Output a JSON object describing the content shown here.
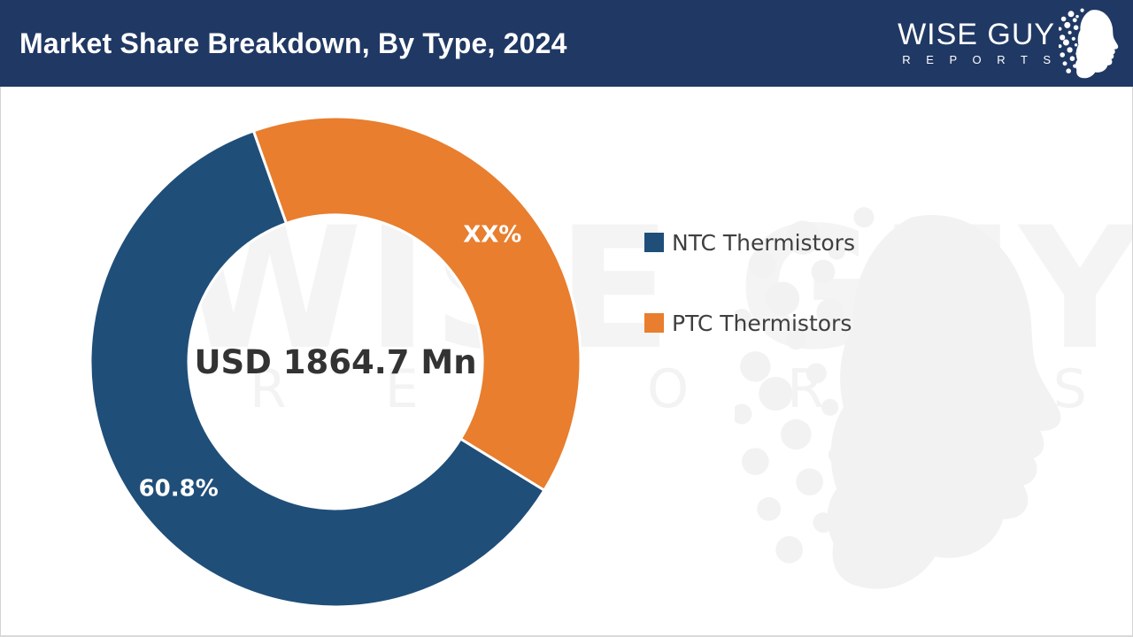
{
  "header": {
    "title": "Market Share Breakdown, By Type, 2024",
    "logo": {
      "line1": "WISE GUY",
      "line2": "R E P O R T S"
    }
  },
  "watermark": {
    "wordmark": "WISE GUY",
    "reports": "R E P O R T S"
  },
  "colors": {
    "header_bg": "#203864",
    "ntc_blue": "#1F4E79",
    "ptc_orange": "#E87E2E",
    "center_text": "#333333",
    "legend_text": "#3F3F3F",
    "watermark": "#F4F4F4"
  },
  "chart_data": {
    "type": "pie",
    "subtype": "donut",
    "title": "Market Share Breakdown, By Type, 2024",
    "center_label": "USD 1864.7 Mn",
    "units": "percent of market share",
    "start_angle_deg": 121.6,
    "legend_position": "right",
    "series": [
      {
        "label": "NTC Thermistors",
        "value": 60.8,
        "display_label": "60.8%",
        "color": "#1F4E79"
      },
      {
        "label": "PTC Thermistors",
        "value": 39.2,
        "display_label": "XX%",
        "color": "#E87E2E"
      }
    ]
  }
}
